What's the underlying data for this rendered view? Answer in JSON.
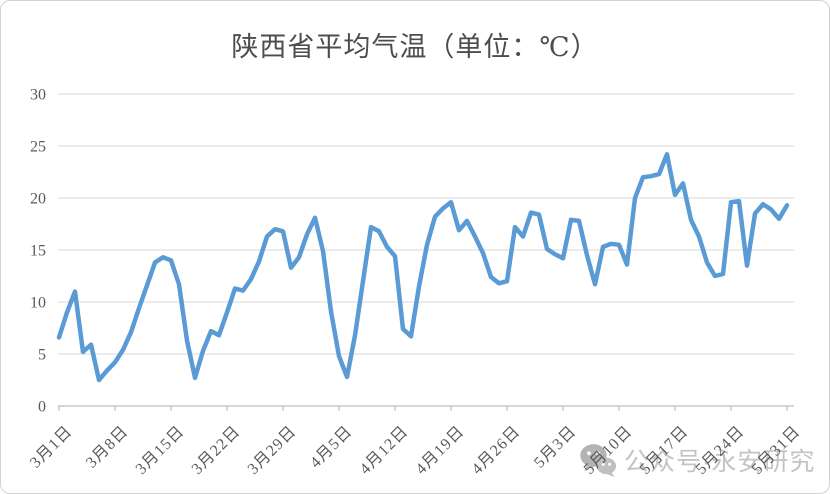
{
  "chart": {
    "title": "陕西省平均气温（单位：℃）"
  },
  "watermark": {
    "icon": "wechat-icon",
    "text": "公众号·永安研究",
    "text_color": "#c3c3c3",
    "icon_color": "#b3b3b3"
  },
  "chart_data": {
    "type": "line",
    "title": "陕西省平均气温（单位：℃）",
    "unit": "℃",
    "legend": "none",
    "grid": true,
    "x_tick_labels": [
      "3月1日",
      "3月8日",
      "3月15日",
      "3月22日",
      "3月29日",
      "4月5日",
      "4月12日",
      "4月19日",
      "4月26日",
      "5月3日",
      "5月10日",
      "5月17日",
      "5月24日",
      "5月31日"
    ],
    "x_tick_step_days": 7,
    "y_ticks": [
      0,
      5,
      10,
      15,
      20,
      25,
      30
    ],
    "ylim": [
      0,
      30
    ],
    "line_color": "#5B9BD5",
    "grid_color": "#D9D9D9",
    "axis_color": "#BFBFBF",
    "label_color": "#595959",
    "series": [
      {
        "name": "平均气温",
        "categories": [
          "3月1日",
          "3月2日",
          "3月3日",
          "3月4日",
          "3月5日",
          "3月6日",
          "3月7日",
          "3月8日",
          "3月9日",
          "3月10日",
          "3月11日",
          "3月12日",
          "3月13日",
          "3月14日",
          "3月15日",
          "3月16日",
          "3月17日",
          "3月18日",
          "3月19日",
          "3月20日",
          "3月21日",
          "3月22日",
          "3月23日",
          "3月24日",
          "3月25日",
          "3月26日",
          "3月27日",
          "3月28日",
          "3月29日",
          "3月30日",
          "3月31日",
          "4月1日",
          "4月2日",
          "4月3日",
          "4月4日",
          "4月5日",
          "4月6日",
          "4月7日",
          "4月8日",
          "4月9日",
          "4月10日",
          "4月11日",
          "4月12日",
          "4月13日",
          "4月14日",
          "4月15日",
          "4月16日",
          "4月17日",
          "4月18日",
          "4月19日",
          "4月20日",
          "4月21日",
          "4月22日",
          "4月23日",
          "4月24日",
          "4月25日",
          "4月26日",
          "4月27日",
          "4月28日",
          "4月29日",
          "4月30日",
          "5月1日",
          "5月2日",
          "5月3日",
          "5月4日",
          "5月5日",
          "5月6日",
          "5月7日",
          "5月8日",
          "5月9日",
          "5月10日",
          "5月11日",
          "5月12日",
          "5月13日",
          "5月14日",
          "5月15日",
          "5月16日",
          "5月17日",
          "5月18日",
          "5月19日",
          "5月20日",
          "5月21日",
          "5月22日",
          "5月23日",
          "5月24日",
          "5月25日",
          "5月26日",
          "5月27日",
          "5月28日",
          "5月29日",
          "5月30日",
          "5月31日"
        ],
        "values": [
          6.6,
          9.0,
          11.0,
          5.2,
          5.9,
          2.5,
          3.4,
          4.2,
          5.4,
          7.1,
          9.4,
          11.6,
          13.8,
          14.3,
          14.0,
          11.7,
          6.3,
          2.7,
          5.3,
          7.2,
          6.8,
          9.0,
          11.3,
          11.1,
          12.2,
          13.9,
          16.3,
          17.0,
          16.8,
          13.3,
          14.3,
          16.5,
          18.1,
          14.9,
          9.1,
          4.8,
          2.8,
          6.8,
          12.0,
          17.2,
          16.8,
          15.3,
          14.4,
          7.4,
          6.7,
          11.5,
          15.5,
          18.2,
          19.0,
          19.6,
          16.9,
          17.8,
          16.3,
          14.7,
          12.4,
          11.8,
          12.0,
          17.2,
          16.3,
          18.6,
          18.4,
          15.1,
          14.6,
          14.2,
          17.9,
          17.8,
          14.5,
          11.7,
          15.3,
          15.6,
          15.5,
          13.6,
          20.0,
          22.0,
          22.1,
          22.3,
          24.2,
          20.3,
          21.4,
          17.9,
          16.3,
          13.8,
          12.5,
          12.7,
          19.6,
          19.7,
          13.5,
          18.5,
          19.4,
          18.9,
          18.0,
          19.3
        ]
      }
    ]
  }
}
